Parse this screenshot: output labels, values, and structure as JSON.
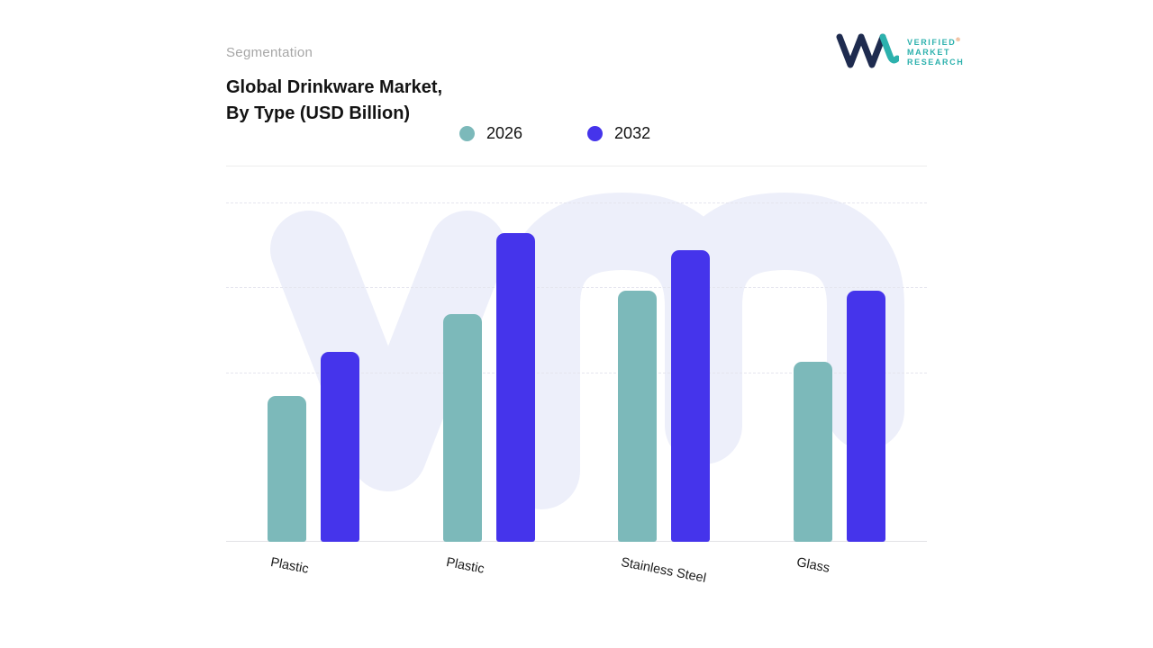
{
  "header": {
    "eyebrow": "Segmentation",
    "title_line1": "Global Drinkware Market,",
    "title_line2": "By Type (USD Billion)"
  },
  "logo": {
    "line1": "VERIFIED",
    "line2": "MARKET",
    "line3": "RESEARCH",
    "registered": "®",
    "navy": "#1e2b4f",
    "teal": "#2cb1ad"
  },
  "legend": [
    {
      "label": "2026",
      "color": "#7cb9ba"
    },
    {
      "label": "2032",
      "color": "#4534eb"
    }
  ],
  "chart_data": {
    "type": "bar",
    "title": "Global Drinkware Market, By Type (USD Billion)",
    "categories": [
      "Plastic",
      "Plastic",
      "Stainless Steel",
      "Glass"
    ],
    "series": [
      {
        "name": "2026",
        "color": "#7cb9ba",
        "values": [
          4.3,
          6.7,
          7.4,
          5.3
        ]
      },
      {
        "name": "2032",
        "color": "#4534eb",
        "values": [
          5.6,
          9.1,
          8.6,
          7.4
        ]
      }
    ],
    "xlabel": "",
    "ylabel": "",
    "ylim": [
      0,
      10
    ],
    "gridlines_at": [
      10,
      7.5,
      5
    ],
    "grid": "dashed-horizontal",
    "legend_position": "top",
    "watermark_color": "#edeffa"
  }
}
